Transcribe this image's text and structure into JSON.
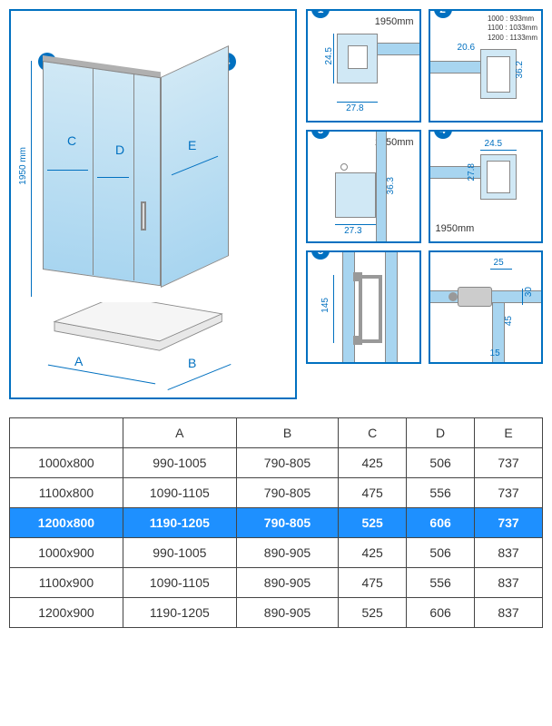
{
  "main_height_label": "1950 mm",
  "main_labels": {
    "A": "A",
    "B": "B",
    "C": "C",
    "D": "D",
    "E": "E"
  },
  "badges": {
    "1": "1",
    "2": "2",
    "3": "3",
    "4": "4",
    "5": "5"
  },
  "details": {
    "1": {
      "label_top": "1950mm",
      "dim_h": "27.8",
      "dim_v": "24.5",
      "colors": {
        "profile_fill": "#d0e8f5",
        "border": "#888888",
        "dim": "#0070c0"
      },
      "fontsize": 10
    },
    "2": {
      "legend": [
        {
          "k": "1000 :",
          "v": "933mm"
        },
        {
          "k": "1100 :",
          "v": "1033mm"
        },
        {
          "k": "1200 :",
          "v": "1133mm"
        }
      ],
      "dim_h": "20.6",
      "dim_v": "36.2"
    },
    "3": {
      "label_top": "1950mm",
      "dim_h": "27.3",
      "dim_v": "36.3"
    },
    "4": {
      "label_bottom": "1950mm",
      "dim_h": "24.5",
      "dim_v": "27.8"
    },
    "5": {
      "dim_v": "145"
    },
    "6": {
      "dim_top": "25",
      "dim_right": "30",
      "dim_bot_v": "45",
      "dim_bot_h": "15"
    }
  },
  "table": {
    "columns": [
      "",
      "A",
      "B",
      "C",
      "D",
      "E"
    ],
    "col_widths_pct": [
      20,
      20,
      18,
      12,
      12,
      12
    ],
    "rows": [
      [
        "1000x800",
        "990-1005",
        "790-805",
        "425",
        "506",
        "737"
      ],
      [
        "1100x800",
        "1090-1105",
        "790-805",
        "475",
        "556",
        "737"
      ],
      [
        "1200x800",
        "1190-1205",
        "790-805",
        "525",
        "606",
        "737"
      ],
      [
        "1000x900",
        "990-1005",
        "890-905",
        "425",
        "506",
        "837"
      ],
      [
        "1100x900",
        "1090-1105",
        "890-905",
        "475",
        "556",
        "837"
      ],
      [
        "1200x900",
        "1190-1205",
        "890-905",
        "525",
        "606",
        "837"
      ]
    ],
    "highlight_row_index": 2,
    "highlight_bg": "#1e90ff",
    "highlight_fg": "#ffffff",
    "border_color": "#444444",
    "fontsize": 14
  },
  "palette": {
    "frame_border": "#0070c0",
    "badge_bg": "#0070c0",
    "badge_fg": "#ffffff",
    "glass_gradient_top": "#d0e8f5",
    "glass_gradient_bot": "#a8d5f0",
    "metal": "#b0b0b0",
    "line": "#888888",
    "background": "#ffffff"
  }
}
